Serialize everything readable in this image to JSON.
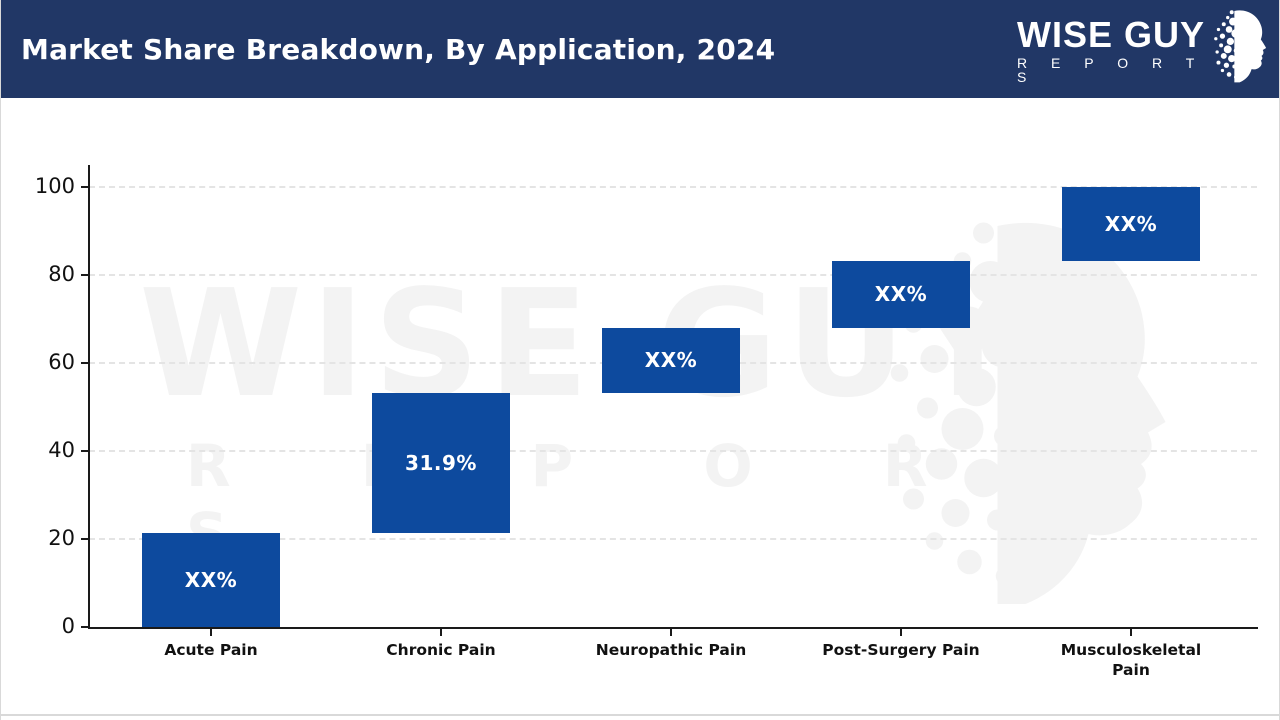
{
  "header": {
    "title": "Market Share Breakdown, By Application, 2024",
    "logo": {
      "line1": "WISE GUY",
      "line2": "R E P O R T S"
    }
  },
  "watermark": {
    "line1": "WISE GUY",
    "line2": "R E P O R T S"
  },
  "colors": {
    "header_bg": "#213766",
    "bar": "#0d4a9e",
    "bar_label": "#ffffff",
    "axis": "#1a1a1a",
    "grid": "#e4e4e4",
    "watermark": "#f3f3f3"
  },
  "chart_data": {
    "type": "bar",
    "subtype": "waterfall",
    "title": "Market Share Breakdown, By Application, 2024",
    "xlabel": "",
    "ylabel": "",
    "ylim": [
      0,
      100
    ],
    "yticks": [
      0,
      20,
      40,
      60,
      80,
      100
    ],
    "grid": "horizontal-dashed",
    "legend": "none",
    "categories": [
      "Acute Pain",
      "Chronic Pain",
      "Neuropathic Pain",
      "Post-Surgery Pain",
      "Musculoskeletal Pain"
    ],
    "bars": [
      {
        "category": "Acute Pain",
        "start": 0,
        "end": 21.3,
        "label": "XX%"
      },
      {
        "category": "Chronic Pain",
        "start": 21.3,
        "end": 53.2,
        "label": "31.9%"
      },
      {
        "category": "Neuropathic Pain",
        "start": 53.2,
        "end": 68.0,
        "label": "XX%"
      },
      {
        "category": "Post-Surgery Pain",
        "start": 68.0,
        "end": 83.2,
        "label": "XX%"
      },
      {
        "category": "Musculoskeletal Pain",
        "start": 83.2,
        "end": 100,
        "label": "XX%"
      }
    ]
  }
}
